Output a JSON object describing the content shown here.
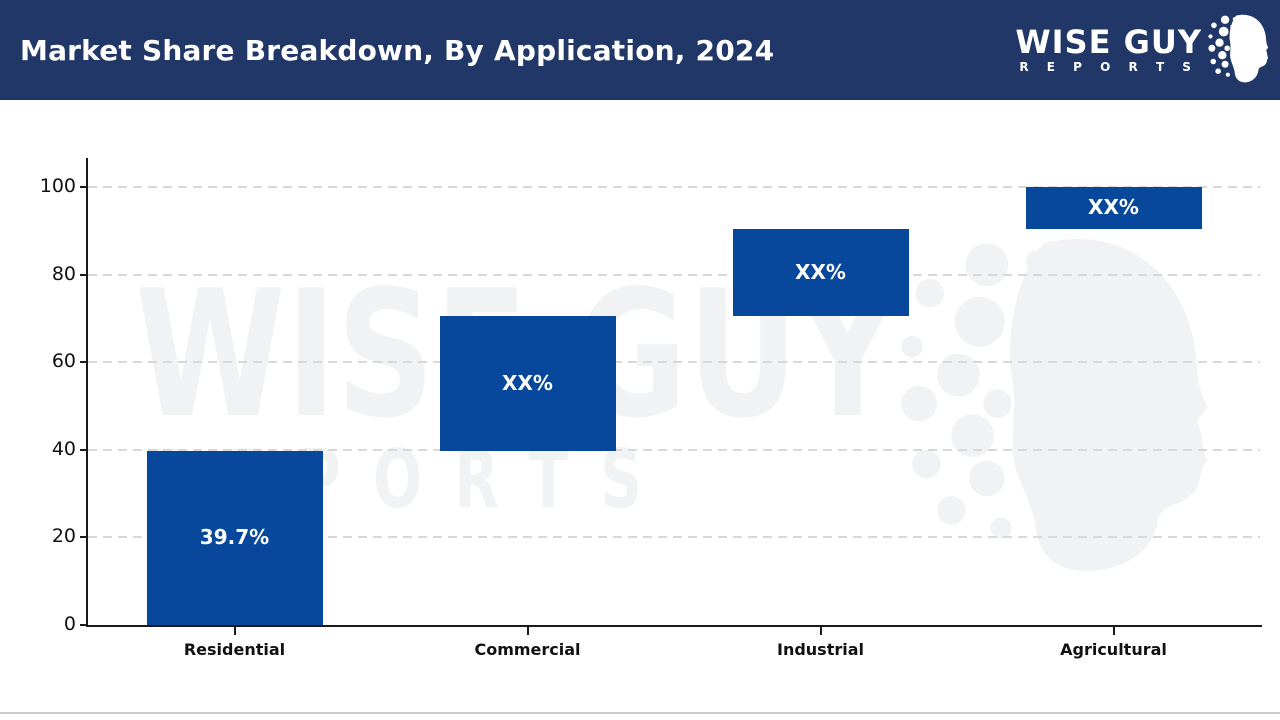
{
  "header": {
    "title": "Market Share Breakdown, By Application, 2024",
    "logo": {
      "wordmark": "WISE GUY",
      "subtext": "R E P O R T S",
      "face_icon": "dotted-profile-face-icon"
    }
  },
  "watermark": {
    "line1": "WISE GUY",
    "line2": "REPORTS",
    "face_icon": "dotted-profile-face-watermark"
  },
  "chart_data": {
    "type": "bar",
    "variant": "waterfall",
    "title": "Market Share Breakdown, By Application, 2024",
    "categories": [
      "Residential",
      "Commercial",
      "Industrial",
      "Agricultural"
    ],
    "series": [
      {
        "name": "Market share (%)",
        "segments": [
          {
            "category": "Residential",
            "start": 0,
            "end": 39.7,
            "label": "39.7%"
          },
          {
            "category": "Commercial",
            "start": 39.7,
            "end": 70.5,
            "label": "XX%"
          },
          {
            "category": "Industrial",
            "start": 70.5,
            "end": 90.4,
            "label": "XX%"
          },
          {
            "category": "Agricultural",
            "start": 90.4,
            "end": 100,
            "label": "XX%"
          }
        ]
      }
    ],
    "xlabel": "",
    "ylabel": "",
    "ylim": [
      0,
      100
    ],
    "yticks": [
      0,
      20,
      40,
      60,
      80,
      100
    ],
    "grid": "horizontal-dashed",
    "legend": "none",
    "colors": {
      "bar": "#08489C",
      "bar_label": "#FFFFFF",
      "axis": "#1A1A1A",
      "grid": "#D8D8D8",
      "header_bg": "#203767",
      "watermark": "#F1F2F4"
    }
  }
}
